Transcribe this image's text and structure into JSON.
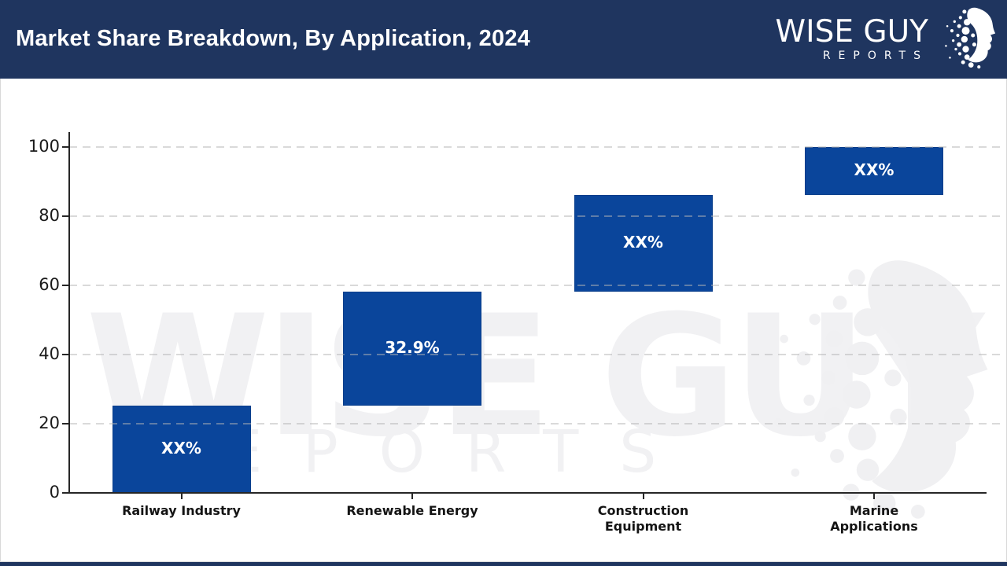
{
  "header": {
    "title": "Market Share Breakdown, By Application, 2024",
    "bg_color": "#1f355f",
    "logo": {
      "line1": "WISE GUY",
      "line2": "REPORTS"
    }
  },
  "watermark": {
    "line1": "WISE GUY",
    "line2": "REPORTS"
  },
  "chart_data": {
    "type": "bar",
    "subtype": "floating-waterfall-segments",
    "title": "Market Share Breakdown, By Application, 2024",
    "categories": [
      "Railway Industry",
      "Renewable Energy",
      "Construction\nEquipment",
      "Marine\nApplications"
    ],
    "series": [
      {
        "name": "Market Share (%)",
        "segment_start": [
          0,
          25.2,
          58.1,
          86.1
        ],
        "segment_end": [
          25.2,
          58.1,
          86.1,
          100
        ],
        "values": [
          25.2,
          32.9,
          28.0,
          13.9
        ]
      }
    ],
    "bar_labels": [
      "XX%",
      "32.9%",
      "XX%",
      "XX%"
    ],
    "xlabel": "",
    "ylabel": "",
    "yticks": [
      0,
      20,
      40,
      60,
      80,
      100
    ],
    "ylim": [
      0,
      104
    ],
    "grid": "horizontal dashed",
    "legend": "none",
    "bar_color": "#0a459b",
    "label_color": "#ffffff"
  }
}
